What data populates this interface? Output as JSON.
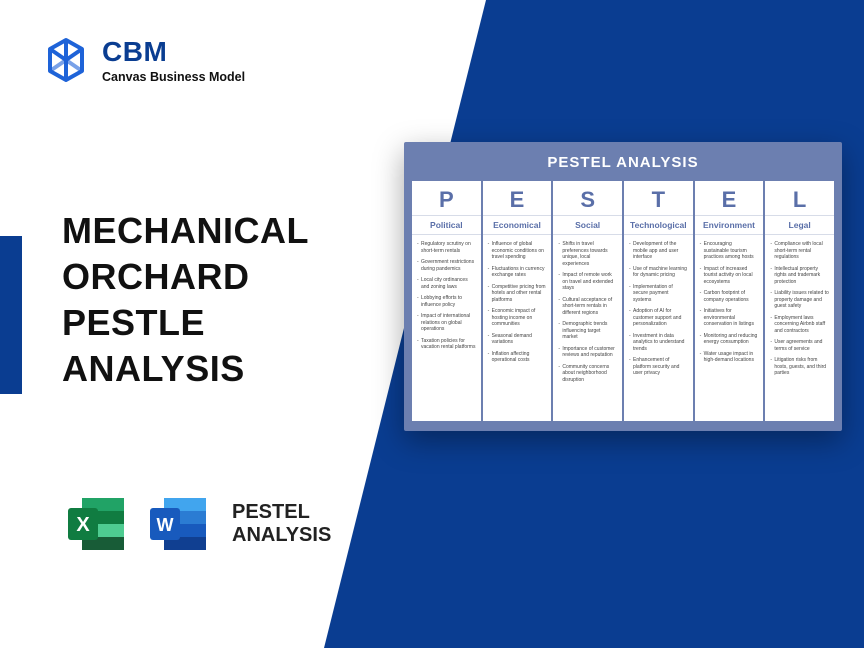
{
  "brand": {
    "name": "CBM",
    "tagline": "Canvas Business Model"
  },
  "title_lines": [
    "MECHANICAL",
    "ORCHARD",
    "PESTLE",
    "ANALYSIS"
  ],
  "footer_label_lines": [
    "PESTEL",
    "ANALYSIS"
  ],
  "colors": {
    "primary": "#0a3d91",
    "card_bg": "#6c7fb0",
    "heading": "#5a6fa8",
    "excel_dark": "#107c41",
    "excel_light": "#21a366",
    "word_dark": "#185abd",
    "word_light": "#41a5ee"
  },
  "pestel": {
    "title": "PESTEL ANALYSIS",
    "columns": [
      {
        "letter": "P",
        "name": "Political",
        "items": [
          "Regulatory scrutiny on short-term rentals",
          "Government restrictions during pandemics",
          "Local city ordinances and zoning laws",
          "Lobbying efforts to influence policy",
          "Impact of international relations on global operations",
          "Taxation policies for vacation rental platforms"
        ]
      },
      {
        "letter": "E",
        "name": "Economical",
        "items": [
          "Influence of global economic conditions on travel spending",
          "Fluctuations in currency exchange rates",
          "Competitive pricing from hotels and other rental platforms",
          "Economic impact of hosting income on communities",
          "Seasonal demand variations",
          "Inflation affecting operational costs"
        ]
      },
      {
        "letter": "S",
        "name": "Social",
        "items": [
          "Shifts in travel preferences towards unique, local experiences",
          "Impact of remote work on travel and extended stays",
          "Cultural acceptance of short-term rentals in different regions",
          "Demographic trends influencing target market",
          "Importance of customer reviews and reputation",
          "Community concerns about neighborhood disruption"
        ]
      },
      {
        "letter": "T",
        "name": "Technological",
        "items": [
          "Development of the mobile app and user interface",
          "Use of machine learning for dynamic pricing",
          "Implementation of secure payment systems",
          "Adoption of AI for customer support and personalization",
          "Investment in data analytics to understand trends",
          "Enhancement of platform security and user privacy"
        ]
      },
      {
        "letter": "E",
        "name": "Environment",
        "items": [
          "Encouraging sustainable tourism practices among hosts",
          "Impact of increased tourist activity on local ecosystems",
          "Carbon footprint of company operations",
          "Initiatives for environmental conservation in listings",
          "Monitoring and reducing energy consumption",
          "Water usage impact in high-demand locations"
        ]
      },
      {
        "letter": "L",
        "name": "Legal",
        "items": [
          "Compliance with local short-term rental regulations",
          "Intellectual property rights and trademark protection",
          "Liability issues related to property damage and guest safety",
          "Employment laws concerning Airbnb staff and contractors",
          "User agreements and terms of service",
          "Litigation risks from hosts, guests, and third parties"
        ]
      }
    ]
  }
}
